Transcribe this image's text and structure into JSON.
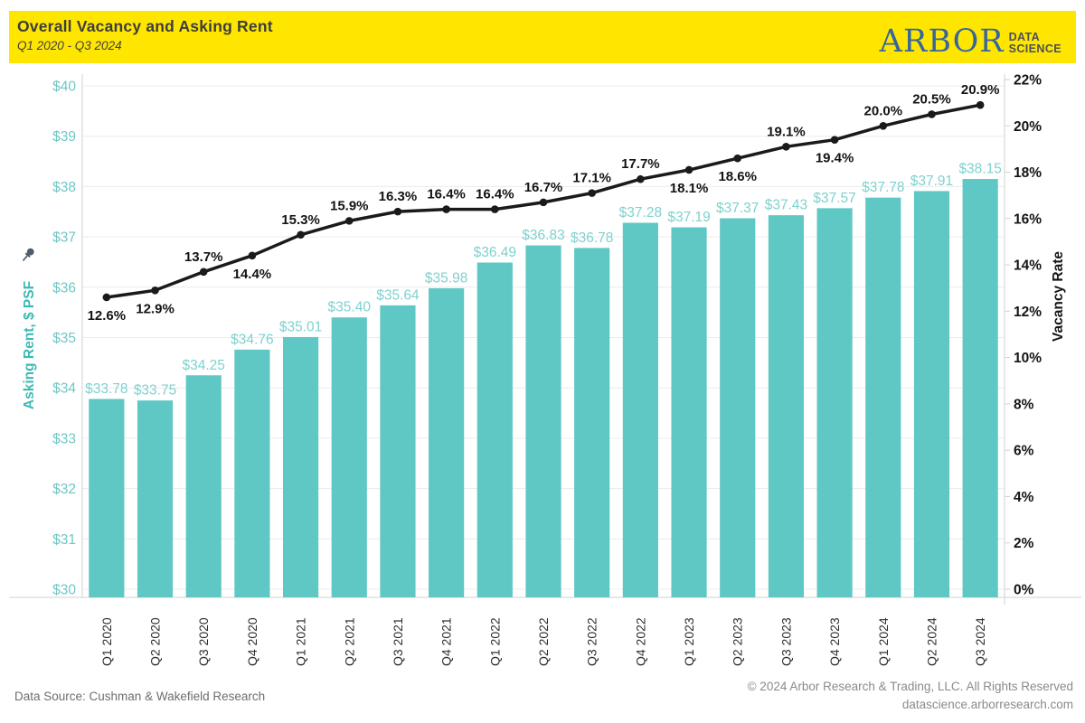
{
  "header": {
    "title": "Overall Vacancy and Asking Rent",
    "subtitle": "Q1 2020 - Q3 2024",
    "logo": {
      "brand": "ARBOR",
      "tagline_top": "DATA",
      "tagline_bottom": "SCIENCE"
    }
  },
  "chart_data": {
    "type": "bar",
    "subtype": "dual-axis bar + line combo",
    "title": "Overall Vacancy and Asking Rent",
    "subtitle": "Q1 2020 - Q3 2024",
    "categories": [
      "Q1 2020",
      "Q2 2020",
      "Q3 2020",
      "Q4 2020",
      "Q1 2021",
      "Q2 2021",
      "Q3 2021",
      "Q4 2021",
      "Q1 2022",
      "Q2 2022",
      "Q3 2022",
      "Q4 2022",
      "Q1 2023",
      "Q2 2023",
      "Q3 2023",
      "Q4 2023",
      "Q1 2024",
      "Q2 2024",
      "Q3 2024"
    ],
    "series": [
      {
        "name": "Asking Rent, $ PSF",
        "kind": "bar",
        "axis": "left",
        "values": [
          33.78,
          33.75,
          34.25,
          34.76,
          35.01,
          35.4,
          35.64,
          35.98,
          36.49,
          36.83,
          36.78,
          37.28,
          37.19,
          37.37,
          37.43,
          37.57,
          37.78,
          37.91,
          38.15
        ]
      },
      {
        "name": "Vacancy Rate",
        "kind": "line",
        "axis": "right",
        "values": [
          12.6,
          12.9,
          13.7,
          14.4,
          15.3,
          15.9,
          16.3,
          16.4,
          16.4,
          16.7,
          17.1,
          17.7,
          18.1,
          18.6,
          19.1,
          19.4,
          20.0,
          20.5,
          20.9
        ],
        "label_position": [
          "below",
          "below",
          "above",
          "below",
          "above",
          "above",
          "above",
          "above",
          "above",
          "above",
          "above",
          "above",
          "below",
          "below",
          "above",
          "below",
          "above",
          "above",
          "above"
        ]
      }
    ],
    "left_axis": {
      "title": "Asking Rent, $ PSF",
      "min": 30,
      "max": 40,
      "tick_step": 1,
      "tick_labels": [
        "$30",
        "$31",
        "$32",
        "$33",
        "$34",
        "$35",
        "$36",
        "$37",
        "$38",
        "$39",
        "$40"
      ]
    },
    "right_axis": {
      "title": "Vacancy Rate",
      "min": 0,
      "max": 22,
      "tick_step": 2,
      "tick_labels": [
        "0%",
        "2%",
        "4%",
        "6%",
        "8%",
        "10%",
        "12%",
        "14%",
        "16%",
        "18%",
        "20%",
        "22%"
      ]
    },
    "grid": true,
    "legend": "none",
    "colors": {
      "bar": "#5fc8c5",
      "bar_label": "#7fd1ce",
      "left_tick": "#6fc7c5",
      "line": "#1a1a1a",
      "header_yellow": "#ffe600",
      "logo_blue": "#35679d",
      "pin_gray": "#4d5d6c"
    }
  },
  "icons": {
    "left_axis_pin": "pushpin-icon"
  },
  "footer": {
    "source": "Data Source: Cushman & Wakefield Research",
    "copyright": "© 2024 Arbor Research & Trading, LLC. All Rights Reserved",
    "website": "datascience.arborresearch.com"
  }
}
